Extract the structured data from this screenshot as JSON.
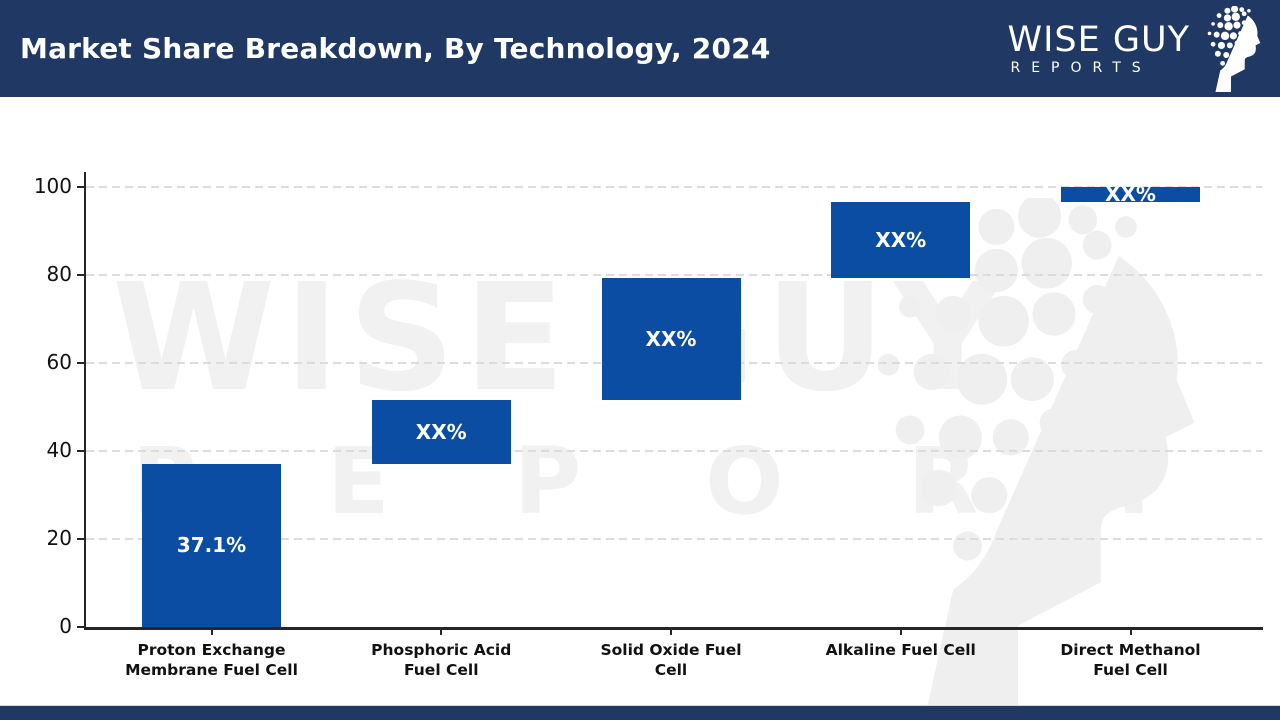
{
  "header": {
    "title": "Market Share Breakdown, By Technology, 2024",
    "bg_color": "#1f3864",
    "logo": {
      "primary": "WISE GUY",
      "secondary": "REPORTS"
    }
  },
  "watermark": {
    "primary": "WISE GUY",
    "secondary": "R E P O R T S"
  },
  "chart_data": {
    "type": "bar",
    "subtype": "floating-segment-waterfall",
    "title": "Market Share Breakdown, By Technology, 2024",
    "xlabel": "",
    "ylabel": "",
    "ylim": [
      0,
      100
    ],
    "yticks": [
      0,
      20,
      40,
      60,
      80,
      100
    ],
    "grid": "horizontal-dashed",
    "legend": "none",
    "bar_color": "#0b4da2",
    "bar_label_color": "#ffffff",
    "axis_color": "#262626",
    "gridline_color": "#dcdcdc",
    "categories": [
      "Proton Exchange Membrane Fuel Cell",
      "Phosphoric Acid Fuel Cell",
      "Solid Oxide Fuel Cell",
      "Alkaline Fuel Cell",
      "Direct Methanol Fuel Cell"
    ],
    "category_label_lines": [
      [
        "Proton Exchange",
        "Membrane Fuel Cell"
      ],
      [
        "Phosphoric Acid",
        "Fuel Cell"
      ],
      [
        "Solid Oxide Fuel",
        "Cell"
      ],
      [
        "Alkaline Fuel Cell"
      ],
      [
        "Direct Methanol",
        "Fuel Cell"
      ]
    ],
    "bars": [
      {
        "category": "Proton Exchange Membrane Fuel Cell",
        "start": 0,
        "end": 37.1,
        "label": "37.1%"
      },
      {
        "category": "Phosphoric Acid Fuel Cell",
        "start": 37.1,
        "end": 51.7,
        "label": "XX%"
      },
      {
        "category": "Solid Oxide Fuel Cell",
        "start": 51.7,
        "end": 79.3,
        "label": "XX%"
      },
      {
        "category": "Alkaline Fuel Cell",
        "start": 79.3,
        "end": 96.6,
        "label": "XX%"
      },
      {
        "category": "Direct Methanol Fuel Cell",
        "start": 96.6,
        "end": 100,
        "label": "XX%"
      }
    ]
  },
  "footer": {
    "bar_color": "#1f3864"
  }
}
